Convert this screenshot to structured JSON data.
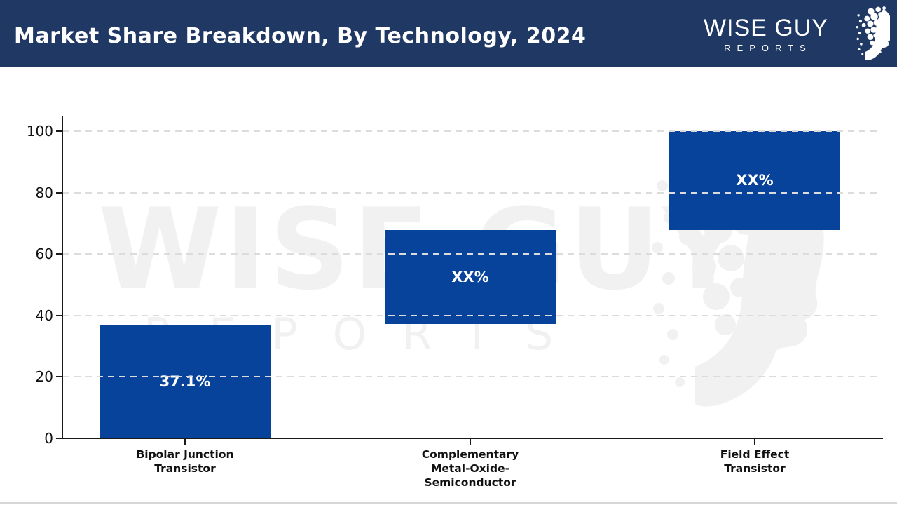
{
  "header": {
    "title": "Market Share Breakdown, By Technology, 2024",
    "bg_color": "#1f3864",
    "logo": {
      "wordmark": "WISE GUY",
      "sub": "REPORTS"
    }
  },
  "watermark": {
    "line1": "WISE GUY",
    "line2": "REPORTS"
  },
  "colors": {
    "bar": "#07429b",
    "header_bg": "#1f3864",
    "grid": "#dcdcdc",
    "axis": "#1a1a1a"
  },
  "chart_data": {
    "type": "bar",
    "subtype": "waterfall-stacked-breakdown",
    "title": "Market Share Breakdown, By Technology, 2024",
    "ylim": [
      0,
      100
    ],
    "yticks": [
      0,
      20,
      40,
      60,
      80,
      100
    ],
    "grid": "horizontal-dashed, drawn over bars",
    "legend": "none",
    "bar_color": "#07429b",
    "bars": [
      {
        "category": "Bipolar Junction Transistor",
        "category_lines": [
          "Bipolar Junction",
          "Transistor"
        ],
        "label": "37.1%",
        "start": 0,
        "end": 37.1
      },
      {
        "category": "Complementary Metal-Oxide-Semiconductor",
        "category_lines": [
          "Complementary",
          "Metal-Oxide-",
          "Semiconductor"
        ],
        "label": "XX%",
        "start": 37.1,
        "end": 67.9
      },
      {
        "category": "Field Effect Transistor",
        "category_lines": [
          "Field Effect",
          "Transistor"
        ],
        "label": "XX%",
        "start": 67.9,
        "end": 100
      }
    ]
  }
}
